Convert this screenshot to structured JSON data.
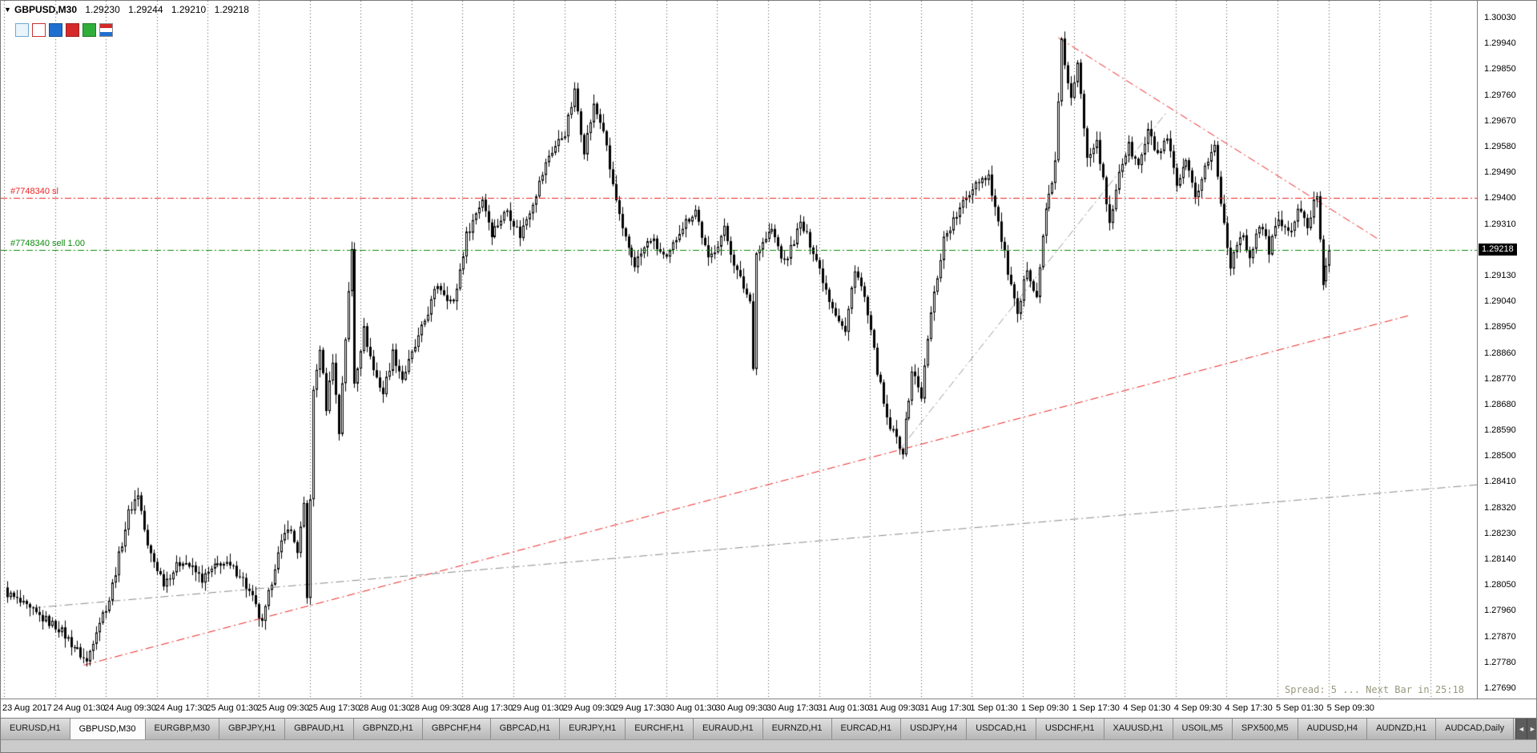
{
  "header": {
    "marker": "▼",
    "symbol_period": "GBPUSD,M30",
    "open": "1.29230",
    "high": "1.29244",
    "low": "1.29210",
    "close": "1.29218"
  },
  "toolbar": {
    "swatches": [
      {
        "name": "swatch-pale-blue",
        "fill": "#eaf4fb",
        "border": "#6fa8d0"
      },
      {
        "name": "swatch-white-red-border",
        "fill": "#ffffff",
        "border": "#c83232"
      },
      {
        "name": "swatch-blue",
        "fill": "#1f6fd0",
        "border": "#15508f"
      },
      {
        "name": "swatch-red",
        "fill": "#d42a2a",
        "border": "#9e1f1f"
      },
      {
        "name": "swatch-green",
        "fill": "#2fae3a",
        "border": "#1f7a28"
      },
      {
        "name": "swatch-striped",
        "stripes": [
          "#d42a2a",
          "#ffffff",
          "#1f6fd0"
        ],
        "border": "#8c8c8c"
      }
    ]
  },
  "chart_data": {
    "type": "candlestick",
    "title": "GBPUSD,M30",
    "price_axis": {
      "min": 1.2769,
      "max": 1.3003,
      "step": 0.0009,
      "labels": [
        "1.30030",
        "1.29940",
        "1.29850",
        "1.29760",
        "1.29670",
        "1.29580",
        "1.29490",
        "1.29400",
        "1.29310",
        "1.29220",
        "1.29130",
        "1.29040",
        "1.28950",
        "1.28860",
        "1.28770",
        "1.28680",
        "1.28590",
        "1.28500",
        "1.28410",
        "1.28320",
        "1.28230",
        "1.28140",
        "1.28050",
        "1.27960",
        "1.27870",
        "1.27780",
        "1.27690"
      ]
    },
    "time_axis": {
      "labels": [
        "23 Aug 2017",
        "24 Aug 01:30",
        "24 Aug 09:30",
        "24 Aug 17:30",
        "25 Aug 01:30",
        "25 Aug 09:30",
        "25 Aug 17:30",
        "28 Aug 01:30",
        "28 Aug 09:30",
        "28 Aug 17:30",
        "29 Aug 01:30",
        "29 Aug 09:30",
        "29 Aug 17:30",
        "30 Aug 01:30",
        "30 Aug 09:30",
        "30 Aug 17:30",
        "31 Aug 01:30",
        "31 Aug 09:30",
        "31 Aug 17:30",
        "1 Sep 01:30",
        "1 Sep 09:30",
        "1 Sep 17:30",
        "4 Sep 01:30",
        "4 Sep 09:30",
        "4 Sep 17:30",
        "5 Sep 01:30",
        "5 Sep 09:30"
      ]
    },
    "current_price": "1.29218",
    "current_price_value": 1.29218,
    "order_lines": [
      {
        "name": "stop-loss-line",
        "label": "#7748340 sl",
        "price": 1.294,
        "color": "#ee2222"
      },
      {
        "name": "sell-order-line",
        "label": "#7748340 sell 1.00",
        "price": 1.29218,
        "color": "#0b8a0b"
      }
    ],
    "trendlines": [
      {
        "name": "ascending-support-red",
        "color": "#ee2222",
        "from": {
          "bar": 24,
          "price": 1.2777
        },
        "to": {
          "bar": 440,
          "price": 1.2899
        }
      },
      {
        "name": "descending-resistance-red",
        "color": "#ee2222",
        "from": {
          "bar": 330,
          "price": 1.2996
        },
        "to": {
          "bar": 430,
          "price": 1.2926
        }
      },
      {
        "name": "shallow-gray-trendline",
        "color": "#8a8a8a",
        "from": {
          "bar": 8,
          "price": 1.2797
        },
        "to": {
          "bar": 462,
          "price": 1.284
        }
      },
      {
        "name": "steep-gray-trendline",
        "color": "#9a9a9a",
        "from": {
          "bar": 280,
          "price": 1.2852
        },
        "to": {
          "bar": 364,
          "price": 1.297
        }
      }
    ],
    "bars_total": 416,
    "price_path": [
      [
        0,
        1.2803
      ],
      [
        8,
        1.2796
      ],
      [
        17,
        1.279
      ],
      [
        26,
        1.2778
      ],
      [
        29,
        1.279
      ],
      [
        33,
        1.28
      ],
      [
        39,
        1.283
      ],
      [
        42,
        1.2837
      ],
      [
        45,
        1.2818
      ],
      [
        50,
        1.2806
      ],
      [
        56,
        1.2814
      ],
      [
        62,
        1.2807
      ],
      [
        68,
        1.2813
      ],
      [
        74,
        1.2809
      ],
      [
        78,
        1.28
      ],
      [
        81,
        1.2791
      ],
      [
        85,
        1.2812
      ],
      [
        89,
        1.2826
      ],
      [
        92,
        1.2817
      ],
      [
        94,
        1.2832
      ],
      [
        95,
        1.28
      ],
      [
        97,
        1.2872
      ],
      [
        99,
        1.2888
      ],
      [
        101,
        1.2867
      ],
      [
        103,
        1.2884
      ],
      [
        105,
        1.2858
      ],
      [
        106,
        1.2876
      ],
      [
        109,
        1.2922
      ],
      [
        110,
        1.2876
      ],
      [
        113,
        1.2894
      ],
      [
        116,
        1.288
      ],
      [
        119,
        1.2872
      ],
      [
        122,
        1.2886
      ],
      [
        125,
        1.2877
      ],
      [
        130,
        1.2891
      ],
      [
        136,
        1.291
      ],
      [
        141,
        1.2903
      ],
      [
        145,
        1.2927
      ],
      [
        150,
        1.294
      ],
      [
        153,
        1.2928
      ],
      [
        158,
        1.2936
      ],
      [
        162,
        1.2927
      ],
      [
        167,
        1.2942
      ],
      [
        171,
        1.2955
      ],
      [
        176,
        1.2963
      ],
      [
        179,
        1.2977
      ],
      [
        182,
        1.2957
      ],
      [
        185,
        1.2972
      ],
      [
        188,
        1.2964
      ],
      [
        190,
        1.295
      ],
      [
        194,
        1.2928
      ],
      [
        198,
        1.2917
      ],
      [
        203,
        1.2926
      ],
      [
        208,
        1.2918
      ],
      [
        212,
        1.2929
      ],
      [
        217,
        1.2936
      ],
      [
        221,
        1.2918
      ],
      [
        226,
        1.2929
      ],
      [
        230,
        1.2914
      ],
      [
        234,
        1.2904
      ],
      [
        235,
        1.2882
      ],
      [
        236,
        1.2921
      ],
      [
        241,
        1.2929
      ],
      [
        245,
        1.2917
      ],
      [
        250,
        1.2931
      ],
      [
        254,
        1.2922
      ],
      [
        259,
        1.2905
      ],
      [
        264,
        1.2893
      ],
      [
        267,
        1.2916
      ],
      [
        270,
        1.2905
      ],
      [
        274,
        1.288
      ],
      [
        277,
        1.2862
      ],
      [
        282,
        1.2852
      ],
      [
        285,
        1.288
      ],
      [
        288,
        1.2871
      ],
      [
        291,
        1.29
      ],
      [
        295,
        1.2926
      ],
      [
        300,
        1.2936
      ],
      [
        305,
        1.2946
      ],
      [
        309,
        1.2948
      ],
      [
        314,
        1.292
      ],
      [
        318,
        1.2898
      ],
      [
        321,
        1.2916
      ],
      [
        324,
        1.2906
      ],
      [
        327,
        1.2936
      ],
      [
        330,
        1.2952
      ],
      [
        332,
        1.2994
      ],
      [
        335,
        1.2974
      ],
      [
        337,
        1.2986
      ],
      [
        340,
        1.2955
      ],
      [
        343,
        1.2961
      ],
      [
        346,
        1.2938
      ],
      [
        347,
        1.293
      ],
      [
        350,
        1.295
      ],
      [
        353,
        1.2958
      ],
      [
        356,
        1.2951
      ],
      [
        359,
        1.2963
      ],
      [
        362,
        1.2955
      ],
      [
        365,
        1.296
      ],
      [
        368,
        1.2944
      ],
      [
        371,
        1.2952
      ],
      [
        374,
        1.294
      ],
      [
        377,
        1.2951
      ],
      [
        380,
        1.2958
      ],
      [
        382,
        1.2938
      ],
      [
        385,
        1.2917
      ],
      [
        388,
        1.2928
      ],
      [
        391,
        1.292
      ],
      [
        394,
        1.2931
      ],
      [
        397,
        1.2922
      ],
      [
        400,
        1.2933
      ],
      [
        403,
        1.2927
      ],
      [
        406,
        1.2936
      ],
      [
        409,
        1.293
      ],
      [
        412,
        1.2942
      ],
      [
        414,
        1.2911
      ],
      [
        416,
        1.29218
      ]
    ]
  },
  "status": {
    "info_text": "Spread: 5 ... Next Bar in 25:18"
  },
  "tabs": {
    "items": [
      {
        "label": "EURUSD,H1"
      },
      {
        "label": "GBPUSD,M30",
        "active": true
      },
      {
        "label": "EURGBP,M30"
      },
      {
        "label": "GBPJPY,H1"
      },
      {
        "label": "GBPAUD,H1"
      },
      {
        "label": "GBPNZD,H1"
      },
      {
        "label": "GBPCHF,H4"
      },
      {
        "label": "GBPCAD,H1"
      },
      {
        "label": "EURJPY,H1"
      },
      {
        "label": "EURCHF,H1"
      },
      {
        "label": "EURAUD,H1"
      },
      {
        "label": "EURNZD,H1"
      },
      {
        "label": "EURCAD,H1"
      },
      {
        "label": "USDJPY,H4"
      },
      {
        "label": "USDCAD,H1"
      },
      {
        "label": "USDCHF,H1"
      },
      {
        "label": "XAUUSD,H1"
      },
      {
        "label": "USOIL,M5"
      },
      {
        "label": "SPX500,M5"
      },
      {
        "label": "AUDUSD,H4"
      },
      {
        "label": "AUDNZD,H1"
      },
      {
        "label": "AUDCAD,Daily"
      }
    ],
    "scroll_left": "◄",
    "scroll_right": "►"
  }
}
